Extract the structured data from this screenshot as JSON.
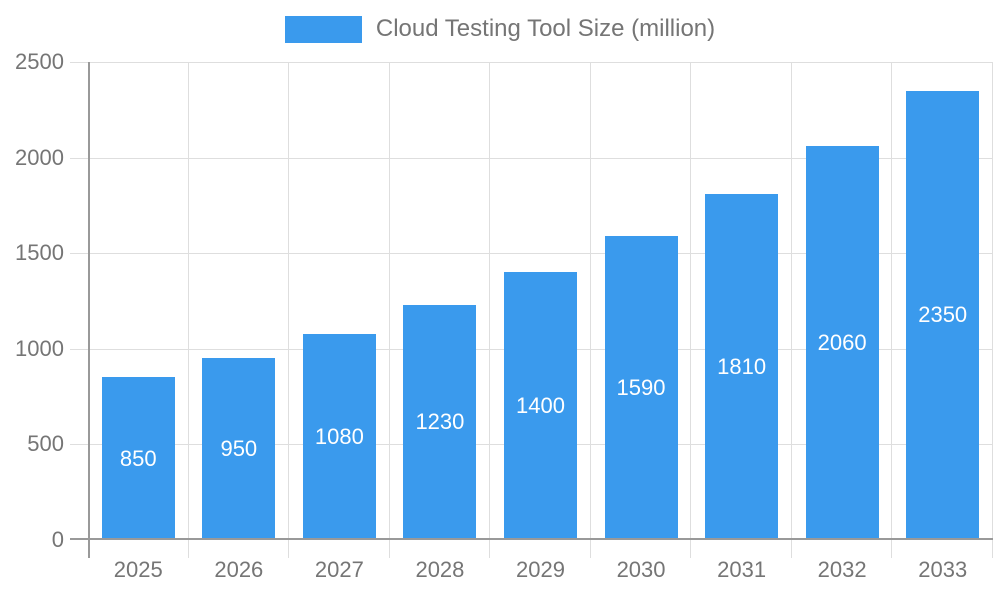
{
  "colors": {
    "bar": "#3A9AED",
    "grid": "#DEDEDE",
    "axis": "#999999",
    "tick_text": "#757575",
    "bar_label": "#FFFFFF",
    "background": "#FFFFFF"
  },
  "chart_data": {
    "type": "bar",
    "title": "Cloud Testing Tool Size (million)",
    "legend": {
      "label": "Cloud Testing Tool Size (million)",
      "position": "top"
    },
    "categories": [
      "2025",
      "2026",
      "2027",
      "2028",
      "2029",
      "2030",
      "2031",
      "2032",
      "2033"
    ],
    "series": [
      {
        "name": "Cloud Testing Tool Size (million)",
        "color": "#3A9AED",
        "values": [
          850,
          950,
          1080,
          1230,
          1400,
          1590,
          1810,
          2060,
          2350
        ]
      }
    ],
    "xlabel": "",
    "ylabel": "",
    "ylim": [
      0,
      2500
    ],
    "yticks": [
      0,
      500,
      1000,
      1500,
      2000,
      2500
    ],
    "grid": true,
    "data_labels": {
      "position": "inside-center",
      "color": "#FFFFFF"
    }
  }
}
